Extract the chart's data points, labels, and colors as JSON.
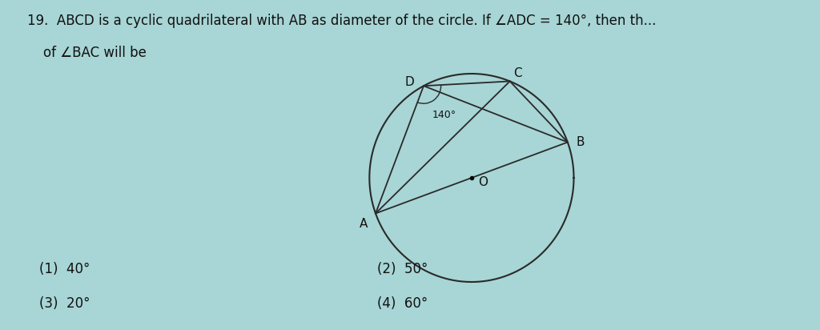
{
  "background_color": "#a8d5d5",
  "title_line1": "19.  ABCD is a cyclic quadrilateral with AB as diameter of the circle. If ∠ADC = 140°, then th...",
  "title_line2": "of ∠BAC will be",
  "title_fontsize": 12,
  "options": [
    "(1)  40°",
    "(2)  50°",
    "(3)  20°",
    "(4)  60°"
  ],
  "angle_label": "140°",
  "line_color": "#2a2a2a",
  "circle_color": "#2a2a2a",
  "text_color": "#111111",
  "point_A_deg": 200,
  "point_B_deg": 20,
  "point_C_deg": 68,
  "point_D_deg": 118,
  "gcx": 0.0,
  "gcy": 0.0,
  "gr": 1.0
}
